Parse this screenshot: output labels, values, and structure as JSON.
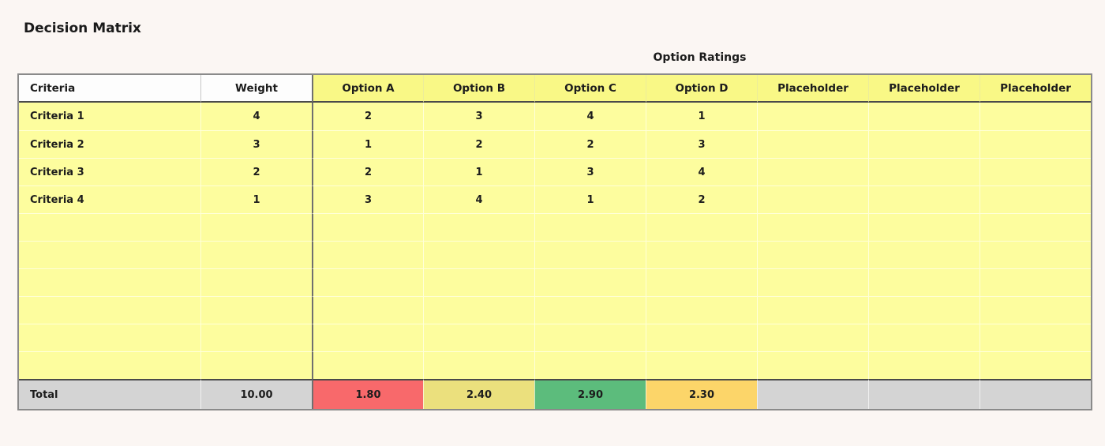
{
  "page": {
    "title": "Decision Matrix"
  },
  "section": {
    "label": "Option Ratings"
  },
  "colors": {
    "page_background": "#FBF6F3",
    "cell_yellow": "#FDFD9E",
    "header_yellow": "#F9F886",
    "header_white": "#FDFDFD",
    "total_gray": "#D4D4D4",
    "total_red": "#F8696B",
    "total_yellow": "#EBE07D",
    "total_green": "#5CBC7C",
    "total_orange": "#FCD569",
    "text": "#1C1C1C"
  },
  "table": {
    "columns": [
      {
        "key": "criteria",
        "label": "Criteria",
        "style": "white"
      },
      {
        "key": "weight",
        "label": "Weight",
        "style": "white"
      },
      {
        "key": "option-a",
        "label": "Option A",
        "style": "yellow"
      },
      {
        "key": "option-b",
        "label": "Option B",
        "style": "yellow"
      },
      {
        "key": "option-c",
        "label": "Option C",
        "style": "yellow"
      },
      {
        "key": "option-d",
        "label": "Option D",
        "style": "yellow"
      },
      {
        "key": "placeholder-1",
        "label": "Placeholder",
        "style": "yellow"
      },
      {
        "key": "placeholder-2",
        "label": "Placeholder",
        "style": "yellow"
      },
      {
        "key": "placeholder-3",
        "label": "Placeholder",
        "style": "yellow"
      }
    ],
    "rows": [
      {
        "criteria": "Criteria 1",
        "weight": "4",
        "ratings": [
          "2",
          "3",
          "4",
          "1",
          "",
          "",
          ""
        ]
      },
      {
        "criteria": "Criteria 2",
        "weight": "3",
        "ratings": [
          "1",
          "2",
          "2",
          "3",
          "",
          "",
          ""
        ]
      },
      {
        "criteria": "Criteria 3",
        "weight": "2",
        "ratings": [
          "2",
          "1",
          "3",
          "4",
          "",
          "",
          ""
        ]
      },
      {
        "criteria": "Criteria 4",
        "weight": "1",
        "ratings": [
          "3",
          "4",
          "1",
          "2",
          "",
          "",
          ""
        ]
      }
    ],
    "empty_row_count": 6,
    "total": {
      "label": "Total",
      "weight": "10.00",
      "ratings": [
        {
          "value": "1.80",
          "color_key": "total_red"
        },
        {
          "value": "2.40",
          "color_key": "total_yellow"
        },
        {
          "value": "2.90",
          "color_key": "total_green"
        },
        {
          "value": "2.30",
          "color_key": "total_orange"
        },
        {
          "value": "",
          "color_key": "total_gray"
        },
        {
          "value": "",
          "color_key": "total_gray"
        },
        {
          "value": "",
          "color_key": "total_gray"
        }
      ]
    }
  }
}
